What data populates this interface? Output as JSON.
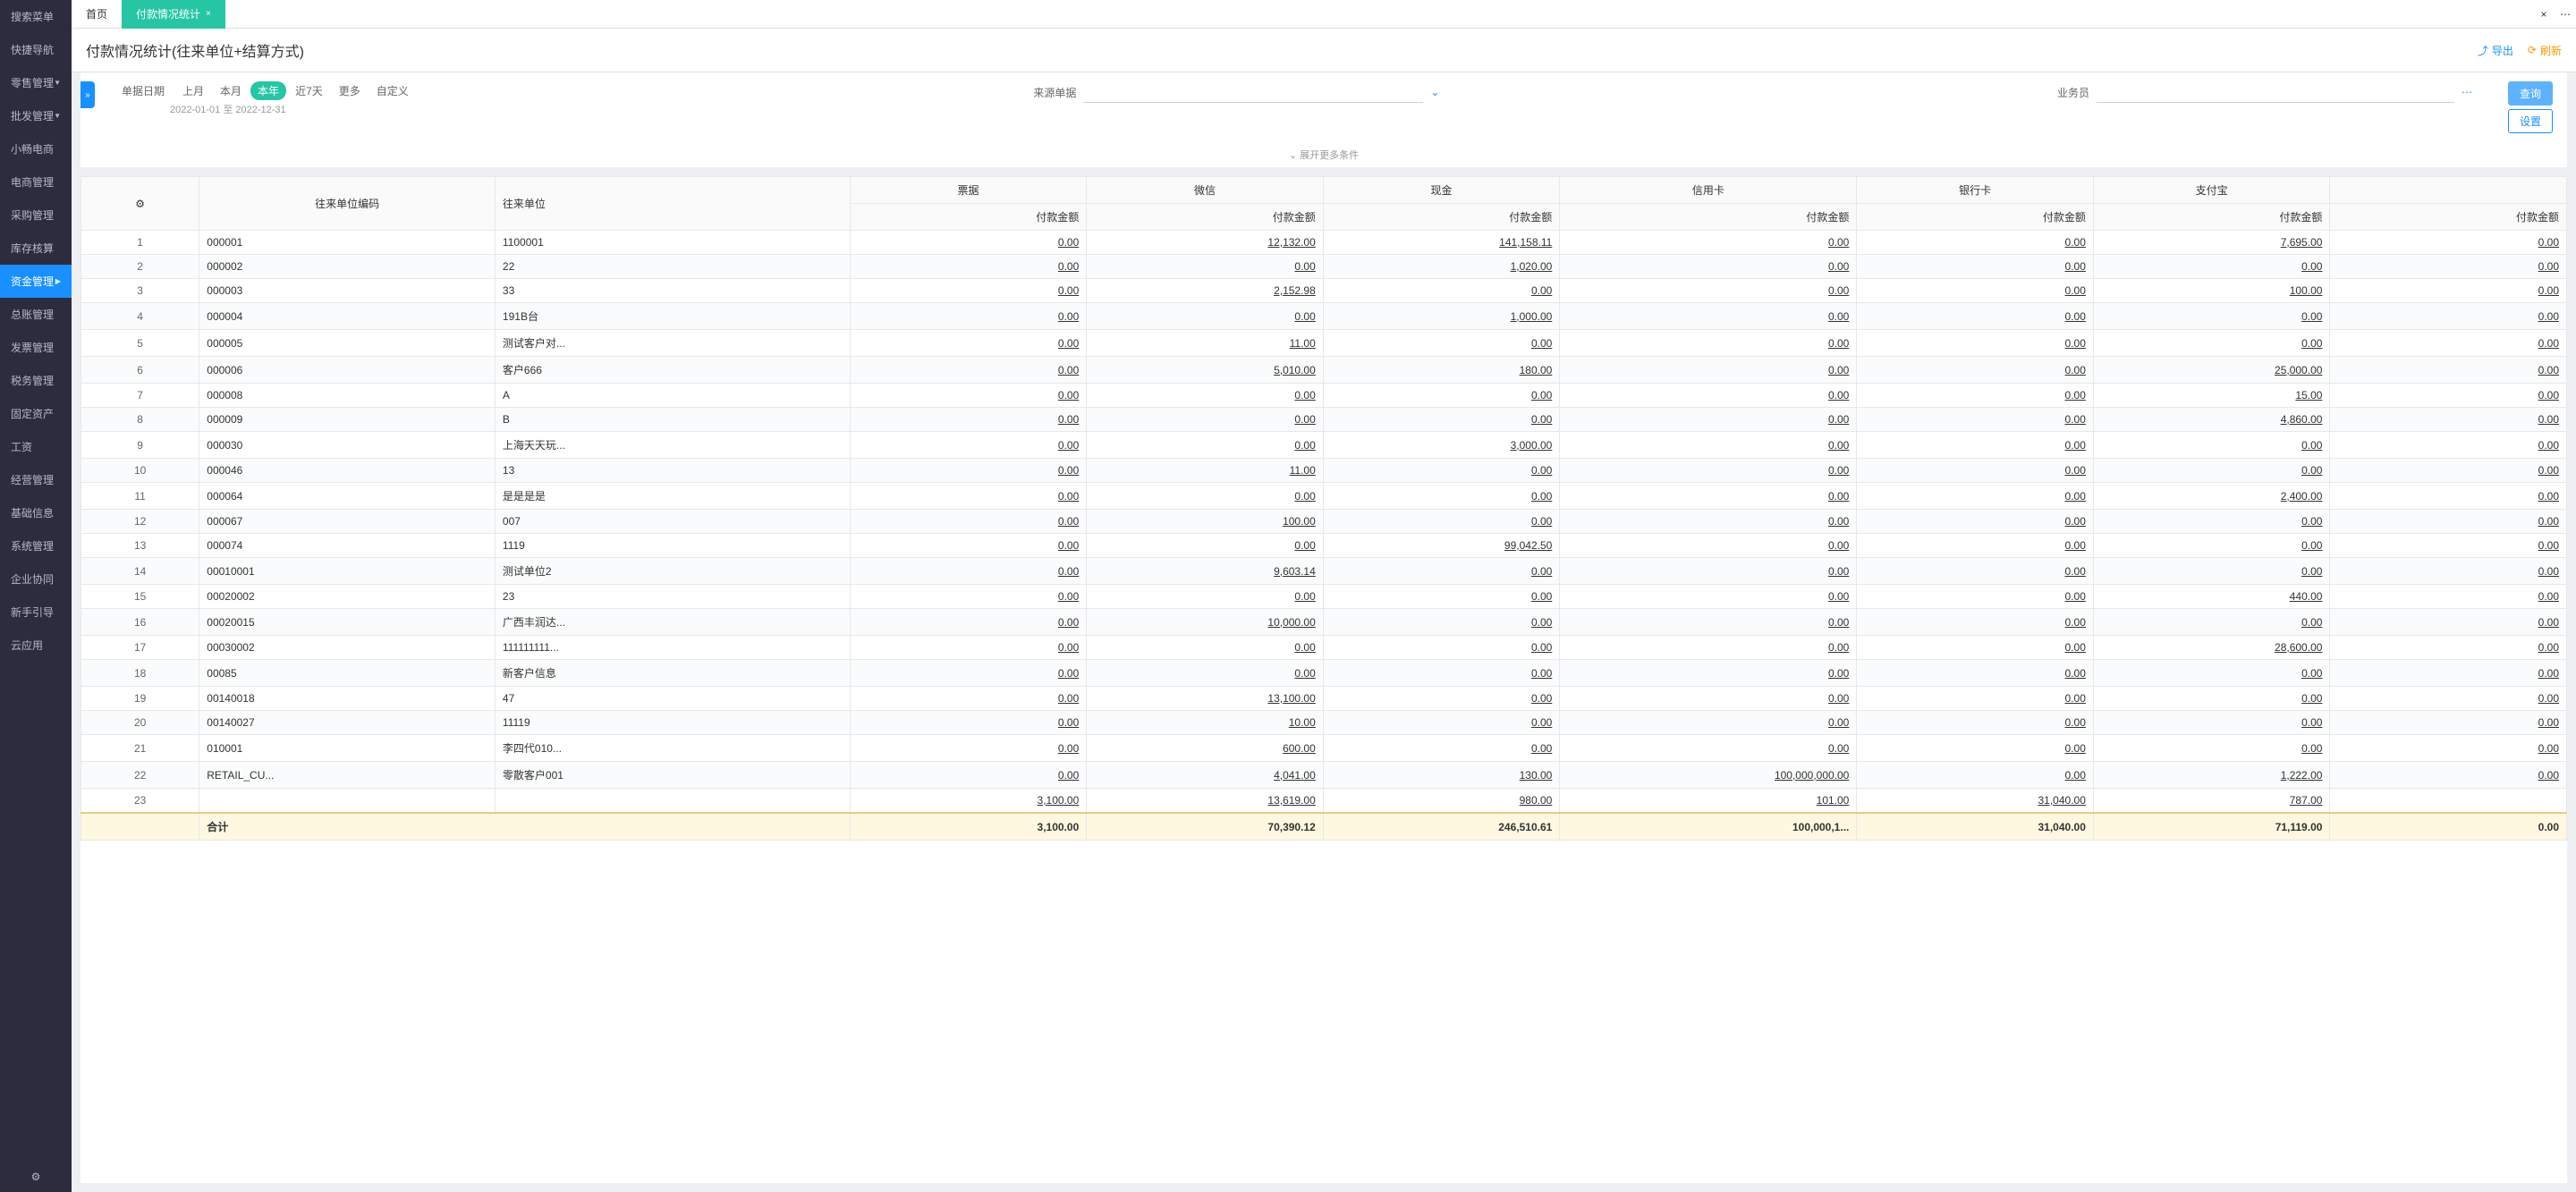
{
  "sidebar": {
    "items": [
      {
        "label": "搜索菜单",
        "hasArrow": false
      },
      {
        "label": "快捷导航",
        "hasArrow": false
      },
      {
        "label": "零售管理",
        "hasArrow": true
      },
      {
        "label": "批发管理",
        "hasArrow": true
      },
      {
        "label": "小畅电商",
        "hasArrow": false
      },
      {
        "label": "电商管理",
        "hasArrow": false
      },
      {
        "label": "采购管理",
        "hasArrow": false
      },
      {
        "label": "库存核算",
        "hasArrow": false
      },
      {
        "label": "资金管理",
        "hasArrow": false,
        "active": true
      },
      {
        "label": "总账管理",
        "hasArrow": false
      },
      {
        "label": "发票管理",
        "hasArrow": false
      },
      {
        "label": "税务管理",
        "hasArrow": false
      },
      {
        "label": "固定资产",
        "hasArrow": false
      },
      {
        "label": "工资",
        "hasArrow": false
      },
      {
        "label": "经营管理",
        "hasArrow": false
      },
      {
        "label": "基础信息",
        "hasArrow": false
      },
      {
        "label": "系统管理",
        "hasArrow": false
      },
      {
        "label": "企业协同",
        "hasArrow": false
      },
      {
        "label": "新手引导",
        "hasArrow": false
      },
      {
        "label": "云应用",
        "hasArrow": false
      }
    ]
  },
  "tabs": {
    "home": "首页",
    "active": "付款情况统计"
  },
  "page": {
    "title": "付款情况统计(往来单位+结算方式)",
    "export": "导出",
    "refresh": "刷新"
  },
  "filters": {
    "dateLabel": "单据日期",
    "dateOptions": [
      "上月",
      "本月",
      "本年",
      "近7天",
      "更多",
      "自定义"
    ],
    "dateActiveIdx": 2,
    "dateRange": "2022-01-01 至 2022-12-31",
    "sourceLabel": "来源单据",
    "sourceValue": "",
    "salesLabel": "业务员",
    "salesValue": "",
    "queryBtn": "查询",
    "settingsBtn": "设置",
    "expand": "展开更多条件"
  },
  "table": {
    "headers": {
      "idx": "",
      "code": "往来单位编码",
      "partner": "往来单位",
      "groups": [
        "票据",
        "微信",
        "现金",
        "信用卡",
        "银行卡",
        "支付宝",
        ""
      ],
      "sub": "付款金额"
    },
    "rows": [
      {
        "idx": 1,
        "code": "000001",
        "partner": "1100001",
        "vals": [
          "0.00",
          "12,132.00",
          "141,158.11",
          "0.00",
          "0.00",
          "7,695.00",
          "0.00"
        ]
      },
      {
        "idx": 2,
        "code": "000002",
        "partner": "22",
        "vals": [
          "0.00",
          "0.00",
          "1,020.00",
          "0.00",
          "0.00",
          "0.00",
          "0.00"
        ]
      },
      {
        "idx": 3,
        "code": "000003",
        "partner": "33",
        "vals": [
          "0.00",
          "2,152.98",
          "0.00",
          "0.00",
          "0.00",
          "100.00",
          "0.00"
        ]
      },
      {
        "idx": 4,
        "code": "000004",
        "partner": "191B台",
        "vals": [
          "0.00",
          "0.00",
          "1,000.00",
          "0.00",
          "0.00",
          "0.00",
          "0.00"
        ]
      },
      {
        "idx": 5,
        "code": "000005",
        "partner": "测试客户对...",
        "vals": [
          "0.00",
          "11.00",
          "0.00",
          "0.00",
          "0.00",
          "0.00",
          "0.00"
        ]
      },
      {
        "idx": 6,
        "code": "000006",
        "partner": "客户666",
        "vals": [
          "0.00",
          "5,010.00",
          "180.00",
          "0.00",
          "0.00",
          "25,000.00",
          "0.00"
        ]
      },
      {
        "idx": 7,
        "code": "000008",
        "partner": "A",
        "vals": [
          "0.00",
          "0.00",
          "0.00",
          "0.00",
          "0.00",
          "15.00",
          "0.00"
        ]
      },
      {
        "idx": 8,
        "code": "000009",
        "partner": "B",
        "vals": [
          "0.00",
          "0.00",
          "0.00",
          "0.00",
          "0.00",
          "4,860.00",
          "0.00"
        ]
      },
      {
        "idx": 9,
        "code": "000030",
        "partner": "上海天天玩...",
        "vals": [
          "0.00",
          "0.00",
          "3,000.00",
          "0.00",
          "0.00",
          "0.00",
          "0.00"
        ]
      },
      {
        "idx": 10,
        "code": "000046",
        "partner": "13",
        "vals": [
          "0.00",
          "11.00",
          "0.00",
          "0.00",
          "0.00",
          "0.00",
          "0.00"
        ]
      },
      {
        "idx": 11,
        "code": "000064",
        "partner": "是是是是",
        "vals": [
          "0.00",
          "0.00",
          "0.00",
          "0.00",
          "0.00",
          "2,400.00",
          "0.00"
        ]
      },
      {
        "idx": 12,
        "code": "000067",
        "partner": "007",
        "vals": [
          "0.00",
          "100.00",
          "0.00",
          "0.00",
          "0.00",
          "0.00",
          "0.00"
        ]
      },
      {
        "idx": 13,
        "code": "000074",
        "partner": "1119",
        "vals": [
          "0.00",
          "0.00",
          "99,042.50",
          "0.00",
          "0.00",
          "0.00",
          "0.00"
        ]
      },
      {
        "idx": 14,
        "code": "00010001",
        "partner": "测试单位2",
        "vals": [
          "0.00",
          "9,603.14",
          "0.00",
          "0.00",
          "0.00",
          "0.00",
          "0.00"
        ]
      },
      {
        "idx": 15,
        "code": "00020002",
        "partner": "23",
        "vals": [
          "0.00",
          "0.00",
          "0.00",
          "0.00",
          "0.00",
          "440.00",
          "0.00"
        ]
      },
      {
        "idx": 16,
        "code": "00020015",
        "partner": "广西丰润达...",
        "vals": [
          "0.00",
          "10,000.00",
          "0.00",
          "0.00",
          "0.00",
          "0.00",
          "0.00"
        ]
      },
      {
        "idx": 17,
        "code": "00030002",
        "partner": "111111111...",
        "vals": [
          "0.00",
          "0.00",
          "0.00",
          "0.00",
          "0.00",
          "28,600.00",
          "0.00"
        ]
      },
      {
        "idx": 18,
        "code": "00085",
        "partner": "新客户信息",
        "vals": [
          "0.00",
          "0.00",
          "0.00",
          "0.00",
          "0.00",
          "0.00",
          "0.00"
        ]
      },
      {
        "idx": 19,
        "code": "00140018",
        "partner": "47",
        "vals": [
          "0.00",
          "13,100.00",
          "0.00",
          "0.00",
          "0.00",
          "0.00",
          "0.00"
        ]
      },
      {
        "idx": 20,
        "code": "00140027",
        "partner": "11119",
        "vals": [
          "0.00",
          "10.00",
          "0.00",
          "0.00",
          "0.00",
          "0.00",
          "0.00"
        ]
      },
      {
        "idx": 21,
        "code": "010001",
        "partner": "李四代010...",
        "vals": [
          "0.00",
          "600.00",
          "0.00",
          "0.00",
          "0.00",
          "0.00",
          "0.00"
        ]
      },
      {
        "idx": 22,
        "code": "RETAIL_CU...",
        "partner": "零散客户001",
        "vals": [
          "0.00",
          "4,041.00",
          "130.00",
          "100,000,000.00",
          "0.00",
          "1,222.00",
          "0.00"
        ]
      },
      {
        "idx": 23,
        "code": "",
        "partner": "",
        "vals": [
          "3,100.00",
          "13,619.00",
          "980.00",
          "101.00",
          "31,040.00",
          "787.00",
          ""
        ]
      }
    ],
    "footer": {
      "label": "合计",
      "vals": [
        "3,100.00",
        "70,390.12",
        "246,510.61",
        "100,000,1...",
        "31,040.00",
        "71,119.00",
        "0.00"
      ]
    }
  }
}
